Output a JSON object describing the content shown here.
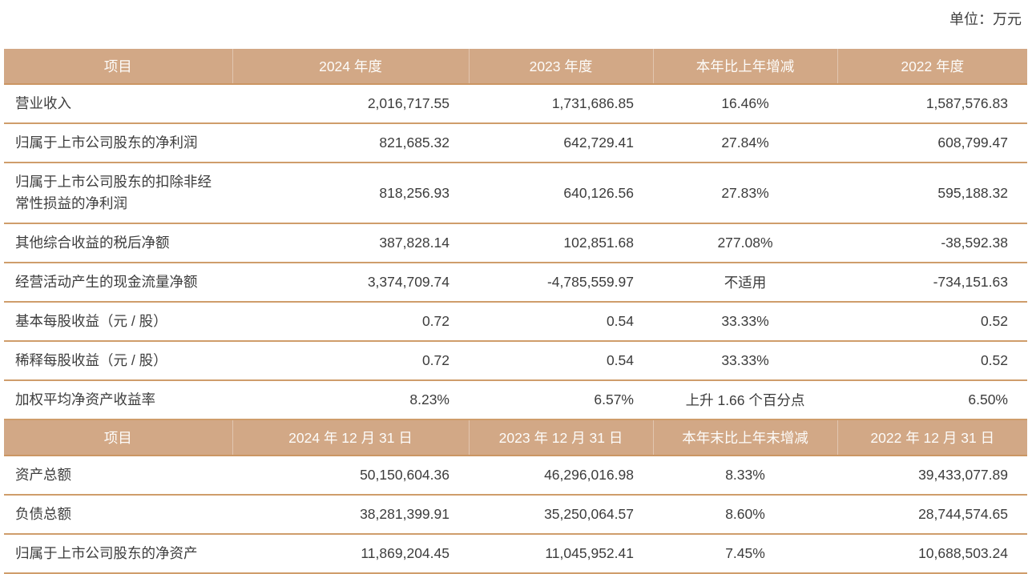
{
  "unit_label": "单位：万元",
  "colors": {
    "header_bg": "#d2a886",
    "row_border": "#cf9d6b",
    "header_text": "#fdfcfa",
    "body_text": "#3c3c3c"
  },
  "annual_table": {
    "headers": [
      "项目",
      "2024 年度",
      "2023 年度",
      "本年比上年增减",
      "2022 年度"
    ],
    "rows": [
      [
        "营业收入",
        "2,016,717.55",
        "1,731,686.85",
        "16.46%",
        "1,587,576.83"
      ],
      [
        "归属于上市公司股东的净利润",
        "821,685.32",
        "642,729.41",
        "27.84%",
        "608,799.47"
      ],
      [
        "归属于上市公司股东的扣除非经常性损益的净利润",
        "818,256.93",
        "640,126.56",
        "27.83%",
        "595,188.32"
      ],
      [
        "其他综合收益的税后净额",
        "387,828.14",
        "102,851.68",
        "277.08%",
        "-38,592.38"
      ],
      [
        "经营活动产生的现金流量净额",
        "3,374,709.74",
        "-4,785,559.97",
        "不适用",
        "-734,151.63"
      ],
      [
        "基本每股收益（元 / 股）",
        "0.72",
        "0.54",
        "33.33%",
        "0.52"
      ],
      [
        "稀释每股收益（元 / 股）",
        "0.72",
        "0.54",
        "33.33%",
        "0.52"
      ],
      [
        "加权平均净资产收益率",
        "8.23%",
        "6.57%",
        "上升 1.66 个百分点",
        "6.50%"
      ]
    ]
  },
  "balance_table": {
    "headers": [
      "项目",
      "2024 年 12 月 31 日",
      "2023 年 12 月 31 日",
      "本年末比上年末增减",
      "2022 年 12 月 31 日"
    ],
    "rows": [
      [
        "资产总额",
        "50,150,604.36",
        "46,296,016.98",
        "8.33%",
        "39,433,077.89"
      ],
      [
        "负债总额",
        "38,281,399.91",
        "35,250,064.57",
        "8.60%",
        "28,744,574.65"
      ],
      [
        "归属于上市公司股东的净资产",
        "11,869,204.45",
        "11,045,952.41",
        "7.45%",
        "10,688,503.24"
      ]
    ]
  }
}
